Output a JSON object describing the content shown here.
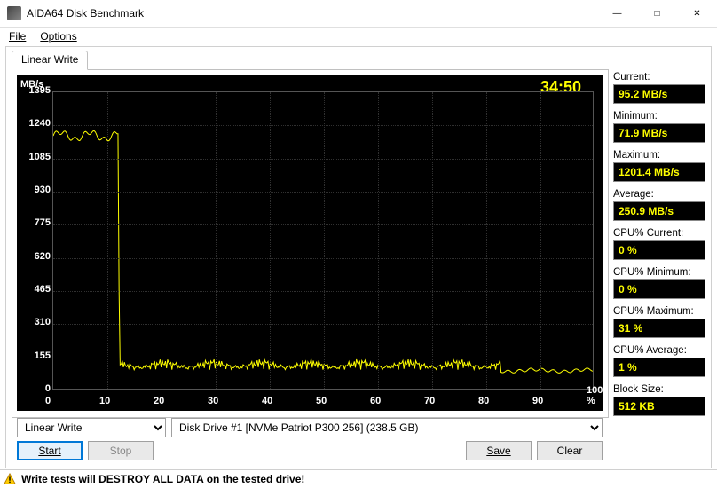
{
  "window": {
    "title": "AIDA64 Disk Benchmark"
  },
  "menu": {
    "file": "File",
    "options": "Options"
  },
  "tab": {
    "label": "Linear Write"
  },
  "chart": {
    "type": "line",
    "y_unit": "MB/s",
    "timer": "34:50",
    "ylim": [
      0,
      1395
    ],
    "yticks": [
      0,
      155,
      310,
      465,
      620,
      775,
      930,
      1085,
      1240,
      1395
    ],
    "xlim": [
      0,
      100
    ],
    "xticks": [
      0,
      10,
      20,
      30,
      40,
      50,
      60,
      70,
      80,
      90,
      100
    ],
    "x_unit": "%",
    "background_color": "#000000",
    "line_color": "#ffff00",
    "grid_color": "#303030",
    "timer_color": "#ffff00",
    "label_color": "#ffffff",
    "trace": {
      "high_level": 1200,
      "high_until_pct": 12,
      "low_base": 95,
      "low_osc_amp": 40,
      "low_osc_period_pct": 1.0,
      "tail_from_pct": 83,
      "tail_level": 85
    }
  },
  "stats": {
    "current": {
      "label": "Current:",
      "value": "95.2 MB/s"
    },
    "minimum": {
      "label": "Minimum:",
      "value": "71.9 MB/s"
    },
    "maximum": {
      "label": "Maximum:",
      "value": "1201.4 MB/s"
    },
    "average": {
      "label": "Average:",
      "value": "250.9 MB/s"
    },
    "cpu_current": {
      "label": "CPU% Current:",
      "value": "0 %"
    },
    "cpu_minimum": {
      "label": "CPU% Minimum:",
      "value": "0 %"
    },
    "cpu_maximum": {
      "label": "CPU% Maximum:",
      "value": "31 %"
    },
    "cpu_average": {
      "label": "CPU% Average:",
      "value": "1 %"
    },
    "block_size": {
      "label": "Block Size:",
      "value": "512 KB"
    }
  },
  "form": {
    "test_select": "Linear Write",
    "drive_select": "Disk Drive #1  [NVMe   Patriot P300 256]  (238.5 GB)",
    "start": "Start",
    "stop": "Stop",
    "save": "Save",
    "clear": "Clear"
  },
  "status": {
    "warning": "Write tests will DESTROY ALL DATA on the tested drive!"
  }
}
